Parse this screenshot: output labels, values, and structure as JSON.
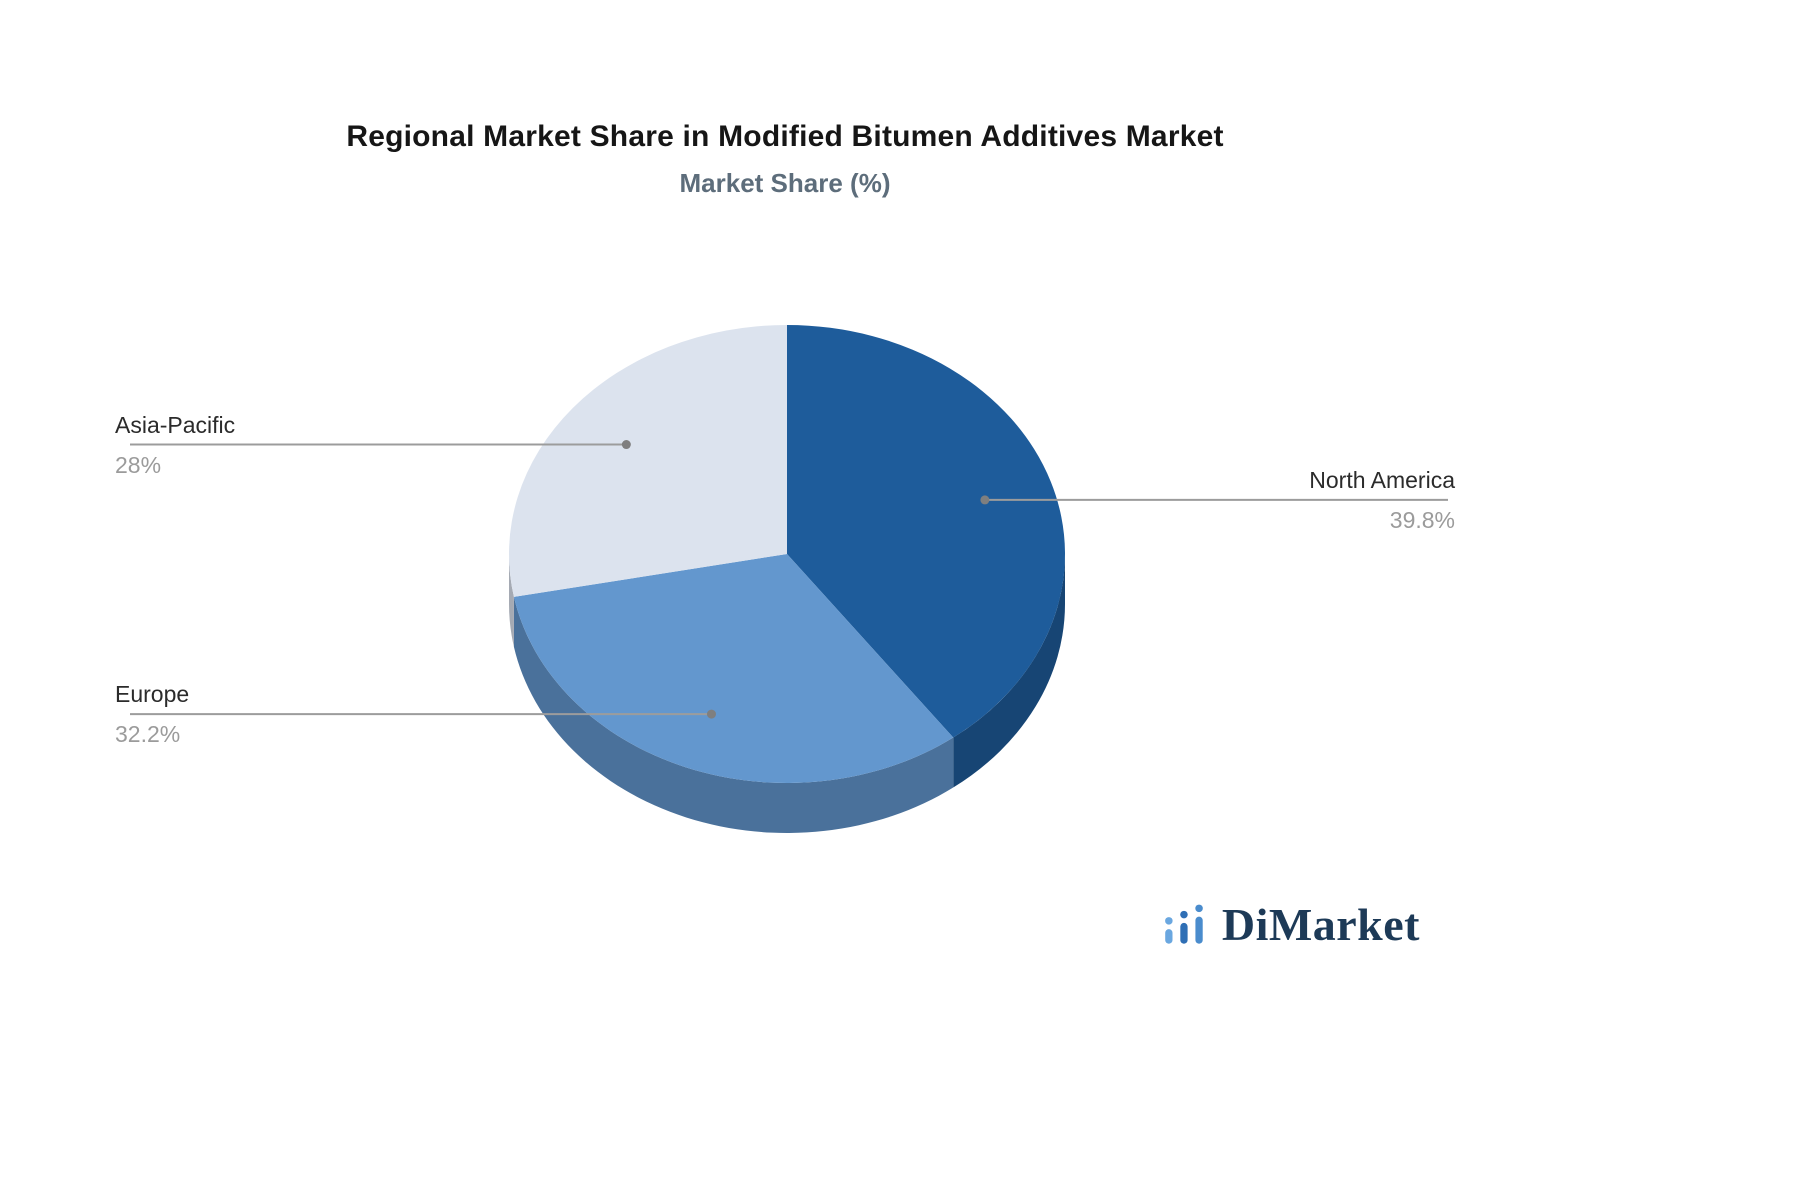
{
  "page": {
    "background": "#ffffff"
  },
  "header": {
    "title": "Regional Market Share in Modified Bitumen Additives Market",
    "subtitle": "Market Share (%)"
  },
  "logo": {
    "text": "DiMarket",
    "icon": "bar-chart-icon",
    "text_color": "#1d3a57",
    "icon_color": "#3d85c6"
  },
  "chart_data": {
    "type": "pie",
    "title": "Regional Market Share in Modified Bitumen Additives Market",
    "subtitle": "Market Share (%)",
    "labels": [
      "North America",
      "Europe",
      "Asia-Pacific"
    ],
    "values": [
      39.8,
      32.2,
      28
    ],
    "value_labels": [
      "39.8%",
      "32.2%",
      "28%"
    ],
    "colors": [
      "#1e5c9b",
      "#6397ce",
      "#dce3ee"
    ],
    "start_angle_deg": 0,
    "direction": "clockwise",
    "style": "3d",
    "legend_position": "none",
    "label_placement": "leader-lines",
    "label_text_color": "#2b2b2b",
    "label_value_color": "#9b9b9b",
    "leader_line_color": "#9c9c9c",
    "leader_dot_color": "#7f7f7f"
  }
}
